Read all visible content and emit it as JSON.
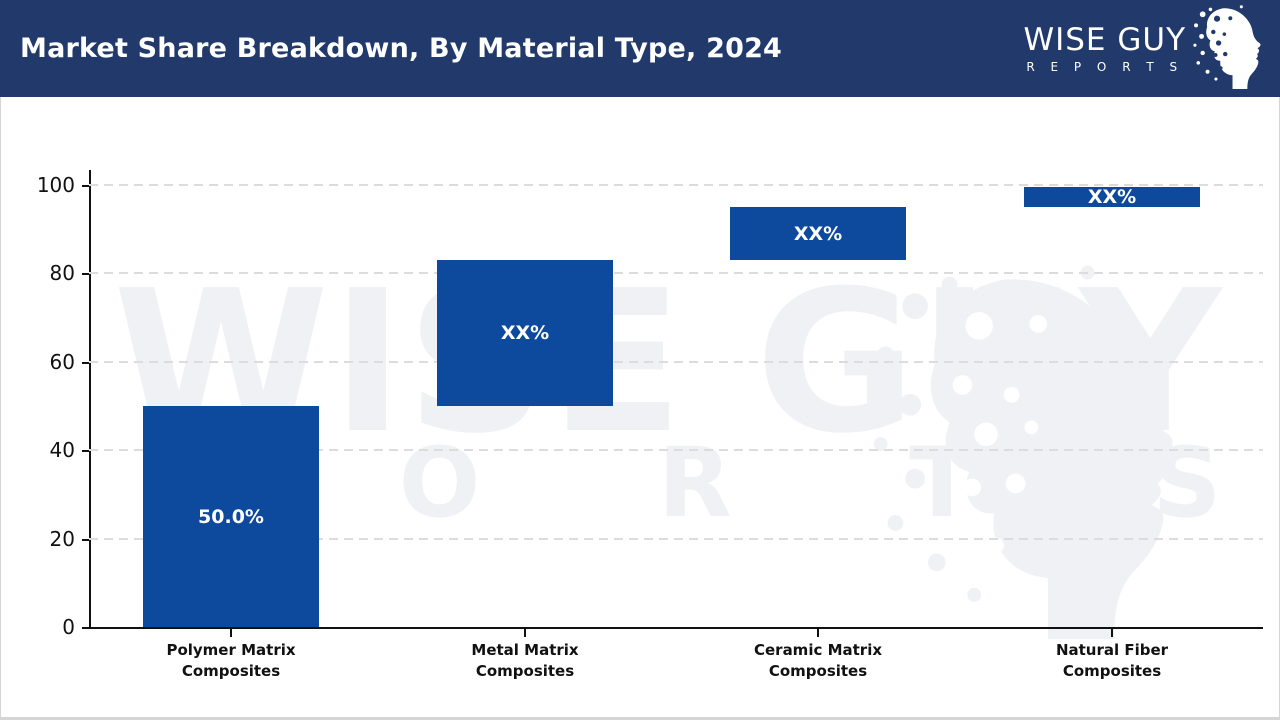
{
  "header": {
    "title": "Market Share Breakdown, By Material Type, 2024",
    "logo": {
      "brand_line1": "WISE GUY",
      "brand_line2": "R E P O R T S"
    }
  },
  "watermark": {
    "line1": "WISE GUY",
    "line2": "P O R T S"
  },
  "colors": {
    "header_bg": "#213a6b",
    "bar": "#0d4a9d",
    "bar_label": "#ffffff",
    "grid": "#dcdcdc",
    "axis": "#111111",
    "watermark": "#f0f1f4"
  },
  "chart_data": {
    "type": "bar",
    "variant": "waterfall",
    "title": "Market Share Breakdown, By Material Type, 2024",
    "ylabel": "",
    "xlabel": "",
    "ylim": [
      0,
      103.5
    ],
    "yticks": [
      0,
      20,
      40,
      60,
      80,
      100
    ],
    "grid": {
      "horizontal": true,
      "style": "dashed"
    },
    "legend": "none",
    "bars": [
      {
        "category": "Polymer Matrix Composites",
        "category_lines": [
          "Polymer Matrix",
          "Composites"
        ],
        "start": 0,
        "end": 50,
        "label": "50.0%"
      },
      {
        "category": "Metal Matrix Composites",
        "category_lines": [
          "Metal Matrix",
          "Composites"
        ],
        "start": 50,
        "end": 83,
        "label": "XX%"
      },
      {
        "category": "Ceramic Matrix Composites",
        "category_lines": [
          "Ceramic Matrix",
          "Composites"
        ],
        "start": 83,
        "end": 95,
        "label": "XX%"
      },
      {
        "category": "Natural Fiber Composites",
        "category_lines": [
          "Natural Fiber",
          "Composites"
        ],
        "start": 95,
        "end": 99.5,
        "label": "XX%"
      }
    ]
  }
}
